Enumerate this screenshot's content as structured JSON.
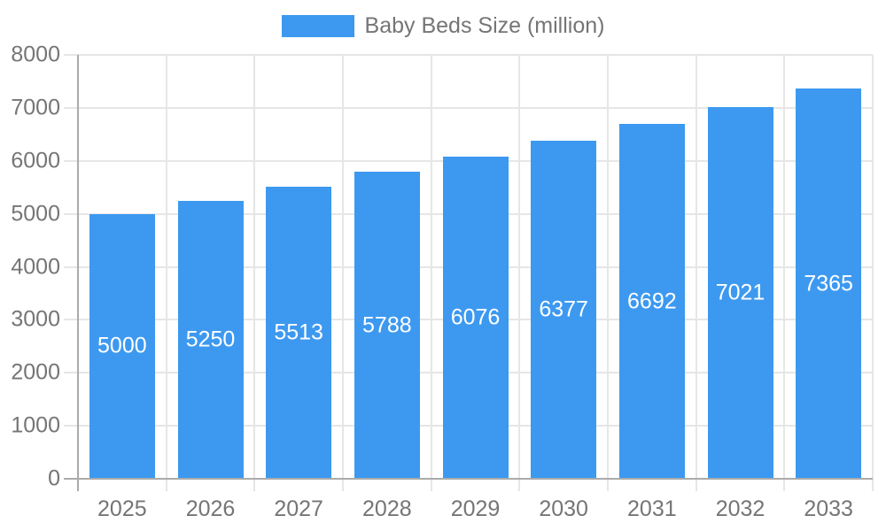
{
  "legend": {
    "label": "Baby Beds Size (million)"
  },
  "colors": {
    "bar": "#3D99F0",
    "axis_text": "#757575",
    "grid": "#e6e6e6",
    "axis_line": "#ababab",
    "value_label": "#ffffff",
    "background": "#ffffff"
  },
  "chart_data": {
    "type": "bar",
    "title": "",
    "xlabel": "",
    "ylabel": "",
    "legend_position": "top",
    "grid": true,
    "categories": [
      "2025",
      "2026",
      "2027",
      "2028",
      "2029",
      "2030",
      "2031",
      "2032",
      "2033"
    ],
    "series": [
      {
        "name": "Baby Beds Size (million)",
        "values": [
          5000,
          5250,
          5513,
          5788,
          6076,
          6377,
          6692,
          7021,
          7365
        ]
      }
    ],
    "bar_value_labels": [
      "5000",
      "5250",
      "5513",
      "5788",
      "6076",
      "6377",
      "6692",
      "7021",
      "7365"
    ],
    "ylim": [
      0,
      8000
    ],
    "ytick_step": 1000,
    "yticks": [
      "0",
      "1000",
      "2000",
      "3000",
      "4000",
      "5000",
      "6000",
      "7000",
      "8000"
    ]
  }
}
